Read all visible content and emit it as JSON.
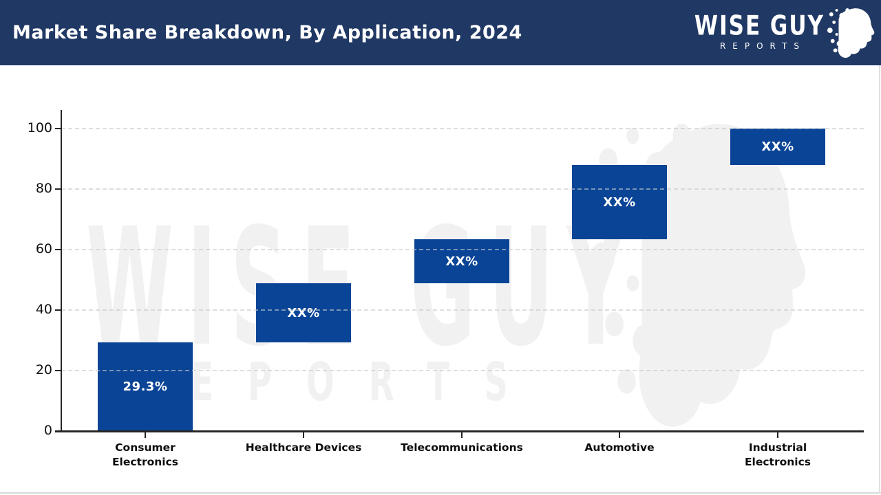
{
  "header": {
    "title": "Market Share Breakdown, By Application, 2024",
    "logo": {
      "name": "WISE GUY",
      "subname": "REPORTS"
    }
  },
  "watermark": {
    "line1": "WISE GUY",
    "line2": "REPORTS"
  },
  "chart_data": {
    "type": "bar",
    "subtype": "waterfall",
    "title": "Market Share Breakdown, By Application, 2024",
    "xlabel": "",
    "ylabel": "",
    "ylim": [
      0,
      106
    ],
    "yticks": [
      0,
      20,
      40,
      60,
      80,
      100
    ],
    "grid": "dashed-horizontal",
    "legend": "none",
    "bar_color": "#0A4496",
    "categories": [
      "Consumer Electronics",
      "Healthcare Devices",
      "Telecommunications",
      "Automotive",
      "Industrial Electronics"
    ],
    "category_label_lines": [
      [
        "Consumer",
        "Electronics"
      ],
      [
        "Healthcare Devices"
      ],
      [
        "Telecommunications"
      ],
      [
        "Automotive"
      ],
      [
        "Industrial",
        "Electronics"
      ]
    ],
    "segments": [
      {
        "category": "Consumer Electronics",
        "start": 0.0,
        "end": 29.3,
        "value_label": "29.3%"
      },
      {
        "category": "Healthcare Devices",
        "start": 29.3,
        "end": 48.8,
        "value_label": "XX%"
      },
      {
        "category": "Telecommunications",
        "start": 48.8,
        "end": 63.4,
        "value_label": "XX%"
      },
      {
        "category": "Automotive",
        "start": 63.4,
        "end": 87.9,
        "value_label": "XX%"
      },
      {
        "category": "Industrial Electronics",
        "start": 87.9,
        "end": 100.0,
        "value_label": "XX%"
      }
    ]
  }
}
